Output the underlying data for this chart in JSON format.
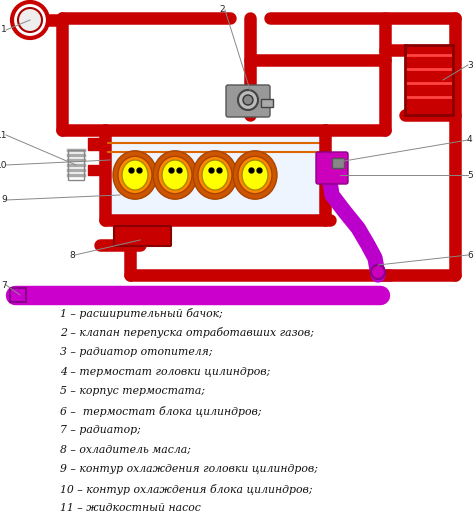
{
  "background_color": "#ffffff",
  "dark_red": "#8B0000",
  "red": "#C80000",
  "purple": "#BB00CC",
  "yellow": "#FFFF00",
  "orange": "#FF7700",
  "legend_items": [
    "1 – расширительный бачок;",
    "2 – клапан перепуска отработавших газов;",
    "3 – радиатор отопителя;",
    "4 – термостат головки цилиндров;",
    "5 – корпус термостата;",
    "6 –  термостат блока цилиндров;",
    "7 – радиатор;",
    "8 – охладитель масла;",
    "9 – контур охлаждения головки цилиндров;",
    "10 – контур охлаждения блока цилиндров;",
    "11 – жидкостный насос"
  ]
}
